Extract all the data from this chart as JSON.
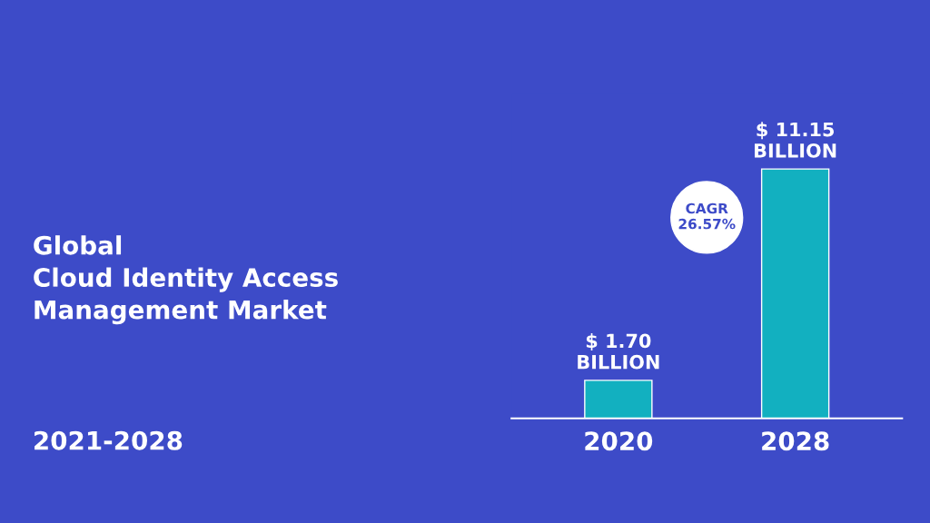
{
  "chart_data": {
    "type": "bar",
    "title": "Global\nCloud Identity Access\nManagement Market",
    "subtitle": "2021-2028",
    "categories": [
      "2020",
      "2028"
    ],
    "values": [
      1.7,
      11.15
    ],
    "color": "#12b0c0",
    "value_labels": [
      "$ 1.70\nBILLION",
      "$ 11.15\nBILLION"
    ],
    "annotations": [
      "CAGR\n26.57%"
    ],
    "grid": false,
    "legend": false
  }
}
